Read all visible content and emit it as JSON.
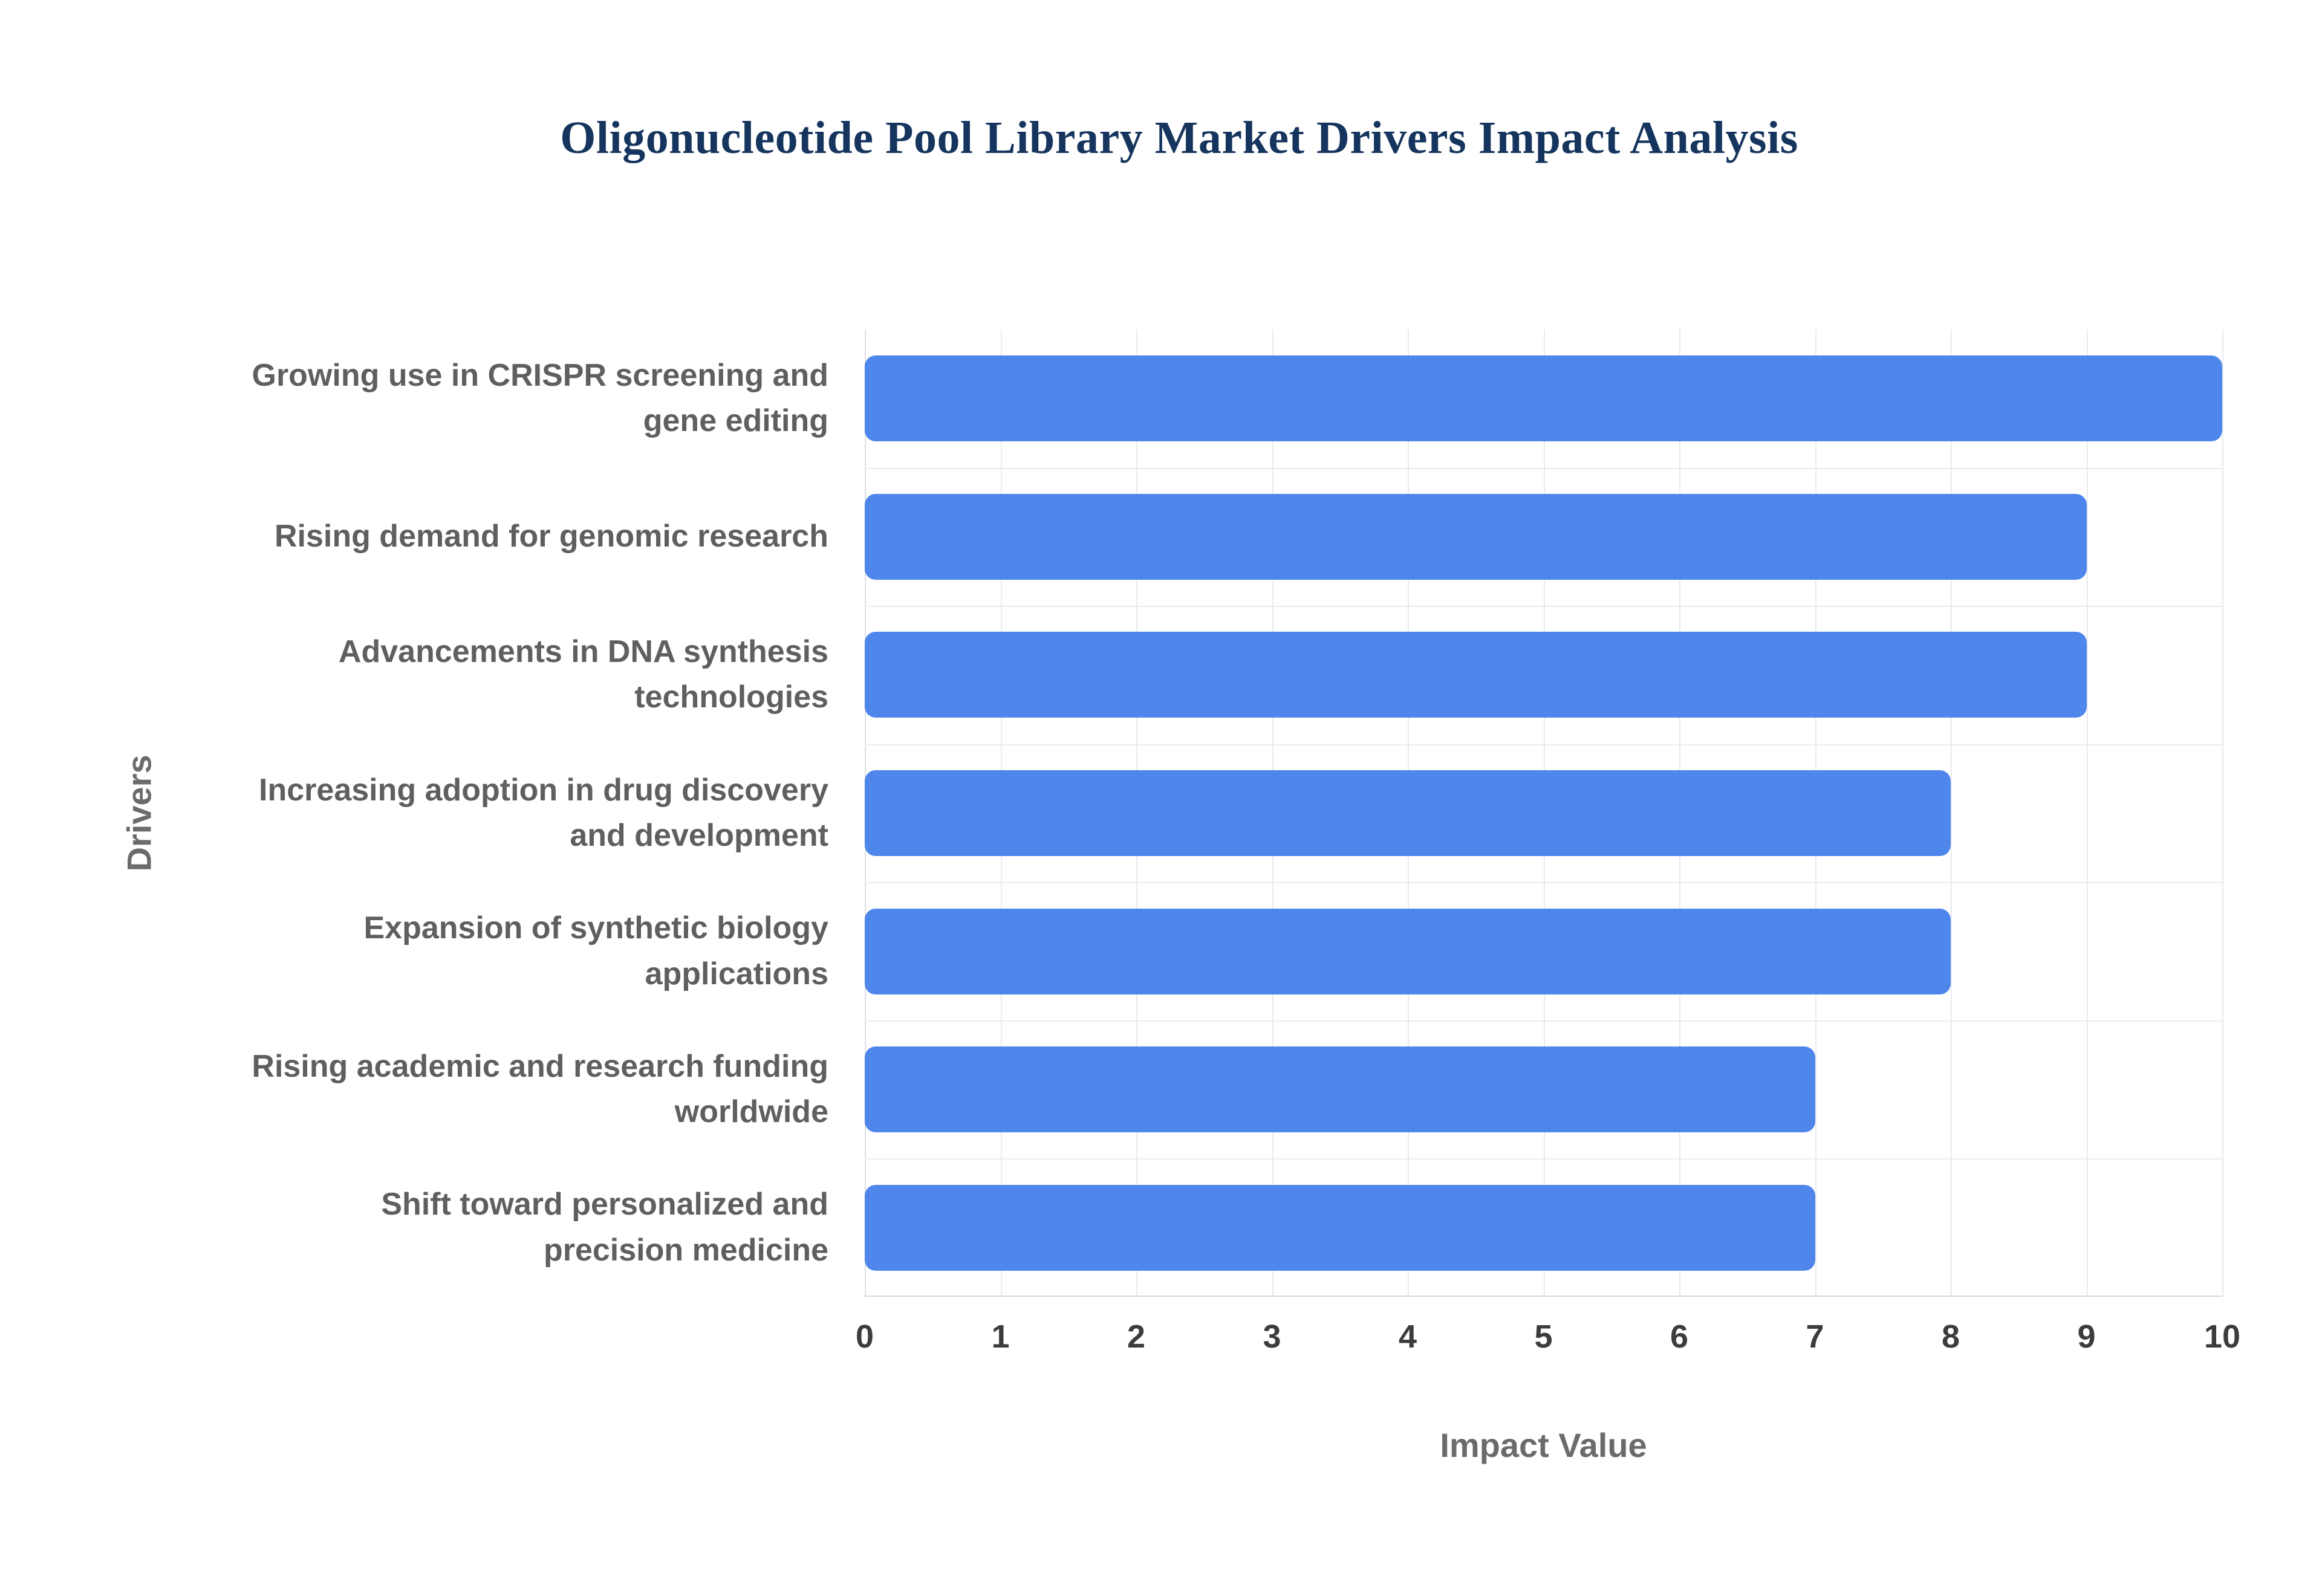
{
  "title": "Oligonucleotide Pool Library Market Drivers Impact Analysis",
  "chart_data": {
    "type": "bar",
    "orientation": "horizontal",
    "title": "Oligonucleotide Pool Library Market Drivers Impact Analysis",
    "xlabel": "Impact Value",
    "ylabel": "Drivers",
    "xlim": [
      0,
      10
    ],
    "xticks": [
      0,
      1,
      2,
      3,
      4,
      5,
      6,
      7,
      8,
      9,
      10
    ],
    "grid": true,
    "legend": "none",
    "bar_color": "#4e86ec",
    "categories": [
      "Growing use in CRISPR screening and gene editing",
      "Rising demand for genomic research",
      "Advancements in DNA synthesis technologies",
      "Increasing adoption in drug discovery and development",
      "Expansion of synthetic biology applications",
      "Rising academic and research funding worldwide",
      "Shift toward personalized and precision medicine"
    ],
    "values": [
      10,
      9,
      9,
      8,
      8,
      7,
      7
    ]
  }
}
